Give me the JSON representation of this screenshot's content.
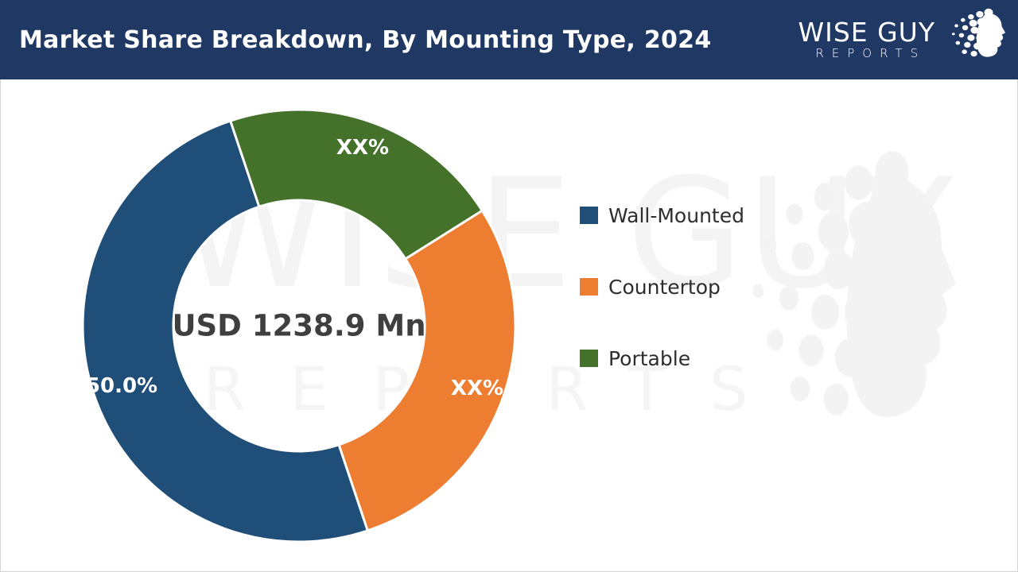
{
  "header": {
    "title": "Market Share Breakdown, By Mounting Type, 2024",
    "logo_line1": "WISE GUY",
    "logo_line2": "REPORTS"
  },
  "watermark": {
    "line1": "WISE GUY",
    "line2": "REPORTS"
  },
  "chart_data": {
    "type": "pie",
    "subtype": "donut",
    "title": "Market Share Breakdown, By Mounting Type, 2024",
    "center_label": "USD 1238.9 Mn",
    "start_angle_deg": 108.5,
    "direction": "counterclockwise",
    "donut_hole_ratio": 0.58,
    "legend_position": "right",
    "slices": [
      {
        "label": "Wall-Mounted",
        "value_pct": 50.0,
        "display_pct": "50.0%",
        "color": "#1F4E79"
      },
      {
        "label": "Countertop",
        "value_pct": 28.8,
        "display_pct": "XX%",
        "color": "#ED7D31"
      },
      {
        "label": "Portable",
        "value_pct": 21.2,
        "display_pct": "XX%",
        "color": "#45722B"
      }
    ]
  },
  "colors": {
    "header_bg": "#1F3864",
    "center_text": "#3F3F3F",
    "legend_text": "#2D2D2D",
    "border": "#D4D4D4",
    "watermark": "#F4F4F4"
  }
}
